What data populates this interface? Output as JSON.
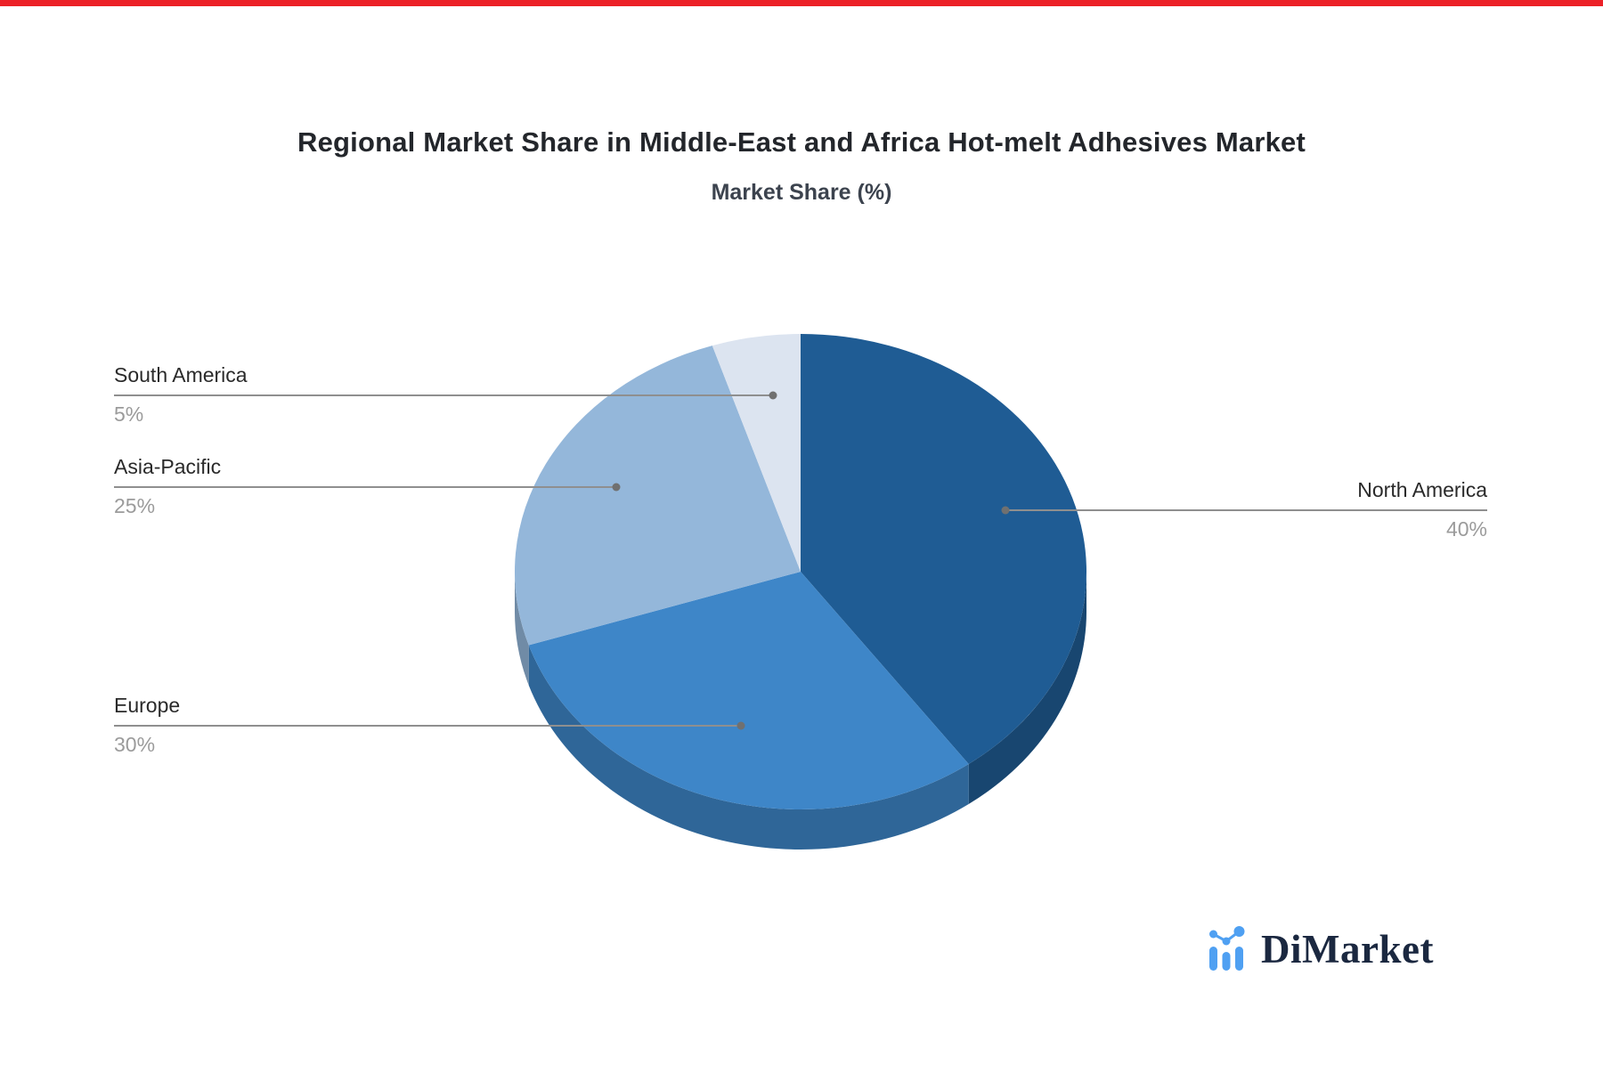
{
  "page": {
    "top_bar_color": "#ec2127",
    "background": "#ffffff"
  },
  "chart": {
    "title": "Regional Market Share in Middle-East and Africa Hot-melt Adhesives Market",
    "subtitle": "Market Share (%)"
  },
  "chart_data": {
    "type": "pie",
    "style": "3d",
    "title": "Regional Market Share in Middle-East and Africa Hot-melt Adhesives Market",
    "subtitle": "Market Share (%)",
    "unit": "%",
    "start_angle_clockwise_from_top_deg": 0,
    "legend_position": "callout-labels",
    "slices": [
      {
        "label": "North America",
        "value": 40,
        "color": "#1f5c94"
      },
      {
        "label": "Europe",
        "value": 30,
        "color": "#3e86c8"
      },
      {
        "label": "Asia-Pacific",
        "value": 25,
        "color": "#94b7da"
      },
      {
        "label": "South America",
        "value": 5,
        "color": "#dce4f0"
      }
    ]
  },
  "labels": {
    "south_america": {
      "name": "South America",
      "value": "5%"
    },
    "asia_pacific": {
      "name": "Asia-Pacific",
      "value": "25%"
    },
    "europe": {
      "name": "Europe",
      "value": "30%"
    },
    "north_america": {
      "name": "North America",
      "value": "40%"
    }
  },
  "callout_style": {
    "line_color": "#8f8f8f",
    "dot_color": "#707070"
  },
  "branding": {
    "logo_text": "DiMarket",
    "text_color": "#1b2840",
    "icon_color": "#4fa0f2"
  }
}
